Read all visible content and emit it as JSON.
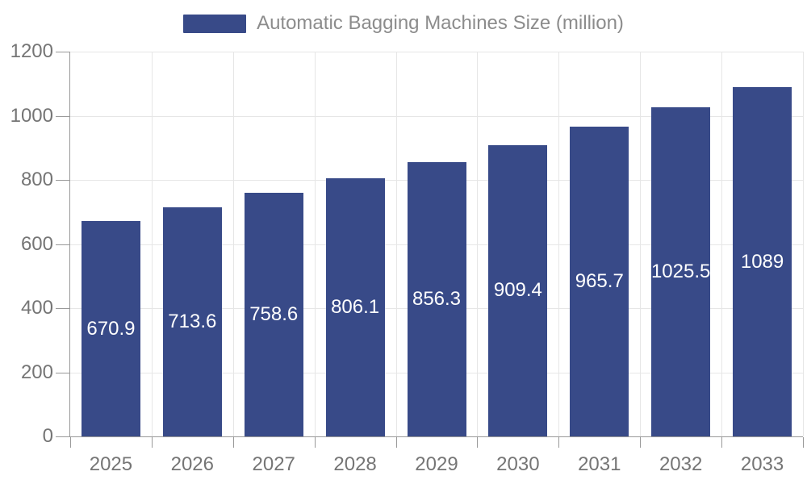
{
  "chart_data": {
    "type": "bar",
    "title": "",
    "categories": [
      "2025",
      "2026",
      "2027",
      "2028",
      "2029",
      "2030",
      "2031",
      "2032",
      "2033"
    ],
    "series": [
      {
        "name": "Automatic Bagging Machines Size (million)",
        "values": [
          670.9,
          713.6,
          758.6,
          806.1,
          856.3,
          909.4,
          965.7,
          1025.5,
          1089
        ],
        "labels": [
          "670.9",
          "713.6",
          "758.6",
          "806.1",
          "856.3",
          "909.4",
          "965.7",
          "1025.5",
          "1089"
        ]
      }
    ],
    "xlabel": "",
    "ylabel": "",
    "ylim": [
      0,
      1200
    ],
    "yticks": [
      0,
      200,
      400,
      600,
      800,
      1000,
      1200
    ],
    "grid": true,
    "legend_position": "top-center",
    "value_label_position": "inside-center"
  },
  "colors": {
    "bar": "#384A88",
    "legend_text": "#8C8C8C",
    "tick_text": "#757575",
    "axis_line": "#999999",
    "gridline": "#E6E6E6",
    "value_label_text": "#FFFFFF",
    "background": "#FFFFFF"
  }
}
